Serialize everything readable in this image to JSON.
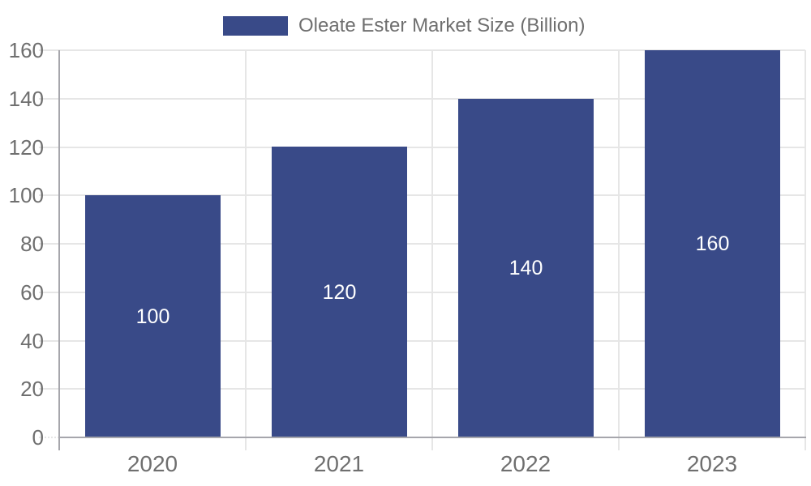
{
  "legend": {
    "label": "Oleate Ester Market Size (Billion)"
  },
  "colors": {
    "bar": "#394A88",
    "grid": "#E6E6E6",
    "axis_line": "#A6A6AC",
    "axis_text": "#6F6F6F",
    "bar_label": "#FFFFFF",
    "background": "#FFFFFF"
  },
  "chart_data": {
    "type": "bar",
    "title": "Oleate Ester Market Size (Billion)",
    "series_name": "Oleate Ester Market Size (Billion)",
    "categories": [
      "2020",
      "2021",
      "2022",
      "2023"
    ],
    "values": [
      100,
      120,
      140,
      160
    ],
    "bar_value_labels": [
      "100",
      "120",
      "140",
      "160"
    ],
    "xlabel": "",
    "ylabel": "",
    "ylim": [
      0,
      160
    ],
    "yticks": [
      0,
      20,
      40,
      60,
      80,
      100,
      120,
      140,
      160
    ],
    "grid": true,
    "legend_position": "top-center",
    "bar_labels_visible": true
  }
}
